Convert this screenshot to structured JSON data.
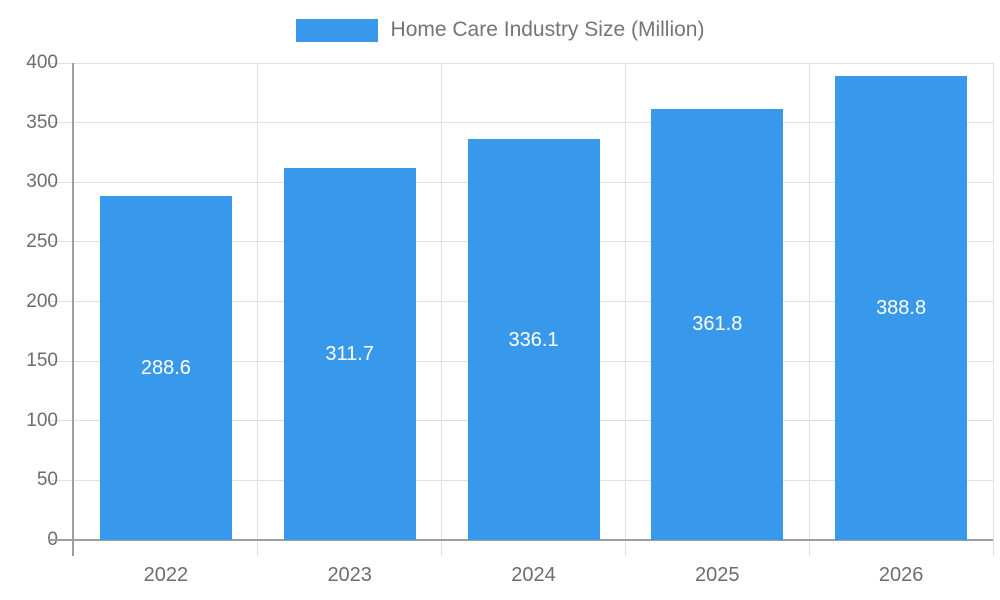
{
  "chart_data": {
    "type": "bar",
    "title": "",
    "legend_label": "Home Care Industry Size (Million)",
    "legend_position": "top",
    "categories": [
      "2022",
      "2023",
      "2024",
      "2025",
      "2026"
    ],
    "series": [
      {
        "name": "Home Care Industry Size (Million)",
        "values": [
          288.6,
          311.7,
          336.1,
          361.8,
          388.8
        ],
        "color": "#3899ec"
      }
    ],
    "bar_labels": [
      "288.6",
      "311.7",
      "336.1",
      "361.8",
      "388.8"
    ],
    "xlabel": "",
    "ylabel": "",
    "ylim": [
      0,
      400
    ],
    "yticks": [
      0,
      50,
      100,
      150,
      200,
      250,
      300,
      350,
      400
    ],
    "grid": true
  },
  "colors": {
    "bar": "#3899ec",
    "bar_label_text": "#ffffff",
    "axis_line": "#9e9e9e",
    "gridline": "#e0e0e0",
    "tick_label_text": "#6d6d6d",
    "legend_text": "#757575",
    "background": "#ffffff"
  }
}
